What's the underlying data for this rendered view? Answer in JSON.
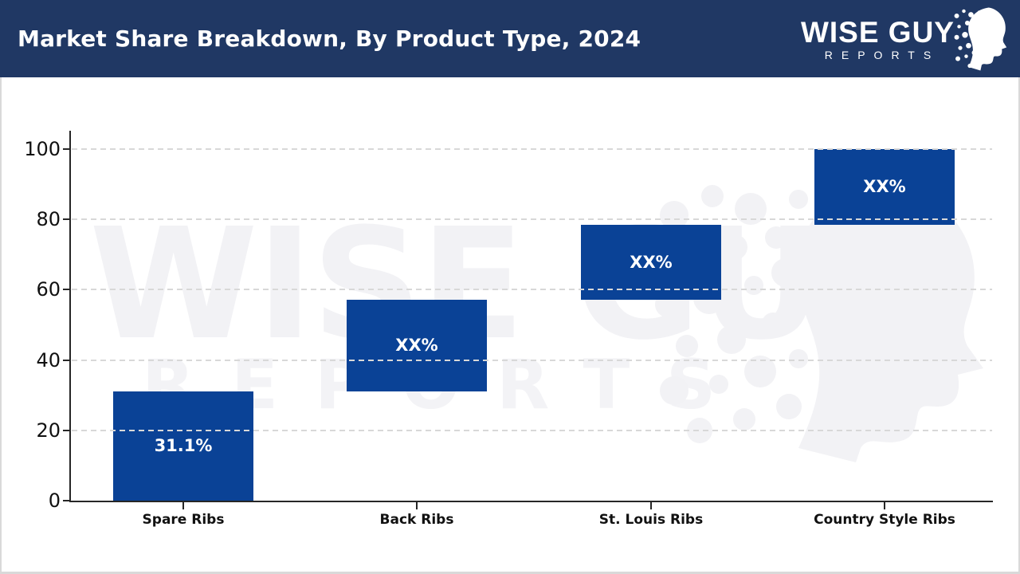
{
  "header": {
    "title": "Market Share Breakdown, By Product Type, 2024",
    "logo": {
      "line1": "WISE GUY",
      "line2": "REPORTS"
    }
  },
  "watermark": {
    "line1": "WISE GUY",
    "line2": "REPORTS"
  },
  "chart_data": {
    "type": "bar",
    "subtype": "waterfall",
    "title": "Market Share Breakdown, By Product Type, 2024",
    "categories": [
      "Spare Ribs",
      "Back Ribs",
      "St. Louis Ribs",
      "Country Style Ribs"
    ],
    "segments": [
      {
        "category": "Spare Ribs",
        "start": 0,
        "end": 31.1,
        "label": "31.1%"
      },
      {
        "category": "Back Ribs",
        "start": 31.1,
        "end": 57.2,
        "label": "XX%"
      },
      {
        "category": "St. Louis Ribs",
        "start": 57.2,
        "end": 78.5,
        "label": "XX%"
      },
      {
        "category": "Country Style Ribs",
        "start": 78.5,
        "end": 100,
        "label": "XX%"
      }
    ],
    "xlabel": "",
    "ylabel": "",
    "ylim": [
      0,
      100
    ],
    "yticks": [
      0,
      20,
      40,
      60,
      80,
      100
    ],
    "grid": "horizontal-dashed",
    "legend": "none",
    "colors": {
      "header_bg": "#203864",
      "bar": "#0a4296",
      "bar_label": "#ffffff",
      "grid": "#d8d8d8",
      "axis": "#262626",
      "watermark": "#f2f2f5"
    }
  }
}
